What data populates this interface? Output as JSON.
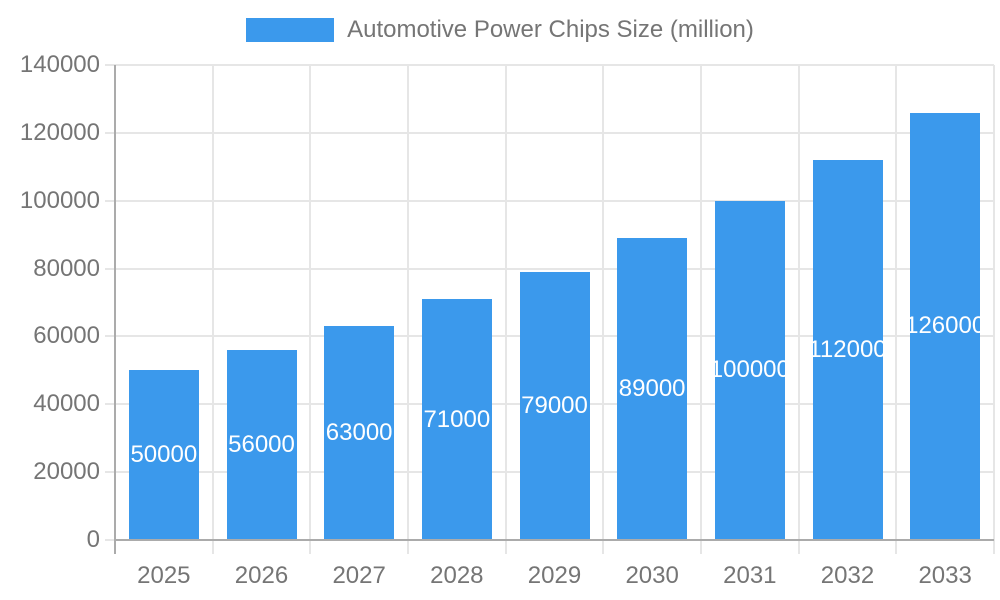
{
  "legend": {
    "label": "Automotive Power Chips Size (million)"
  },
  "colors": {
    "bar": "#3b99ec",
    "axis_label_text": "#757575",
    "value_label_text": "#ffffff",
    "gridline": "#e6e6e6",
    "axis_line": "#ababab",
    "background": "#ffffff"
  },
  "chart_data": {
    "type": "bar",
    "title": "Automotive Power Chips Size (million)",
    "categories": [
      "2025",
      "2026",
      "2027",
      "2028",
      "2029",
      "2030",
      "2031",
      "2032",
      "2033"
    ],
    "series": [
      {
        "name": "Automotive Power Chips Size (million)",
        "values": [
          50000,
          56000,
          63000,
          71000,
          79000,
          89000,
          100000,
          112000,
          126000
        ]
      }
    ],
    "xlabel": "",
    "ylabel": "",
    "ylim": [
      0,
      140000
    ],
    "ytick_step": 20000,
    "ytick_labels": [
      "0",
      "20000",
      "40000",
      "60000",
      "80000",
      "100000",
      "120000",
      "140000"
    ],
    "grid": true,
    "legend_position": "top",
    "value_labels": "inside-center"
  }
}
